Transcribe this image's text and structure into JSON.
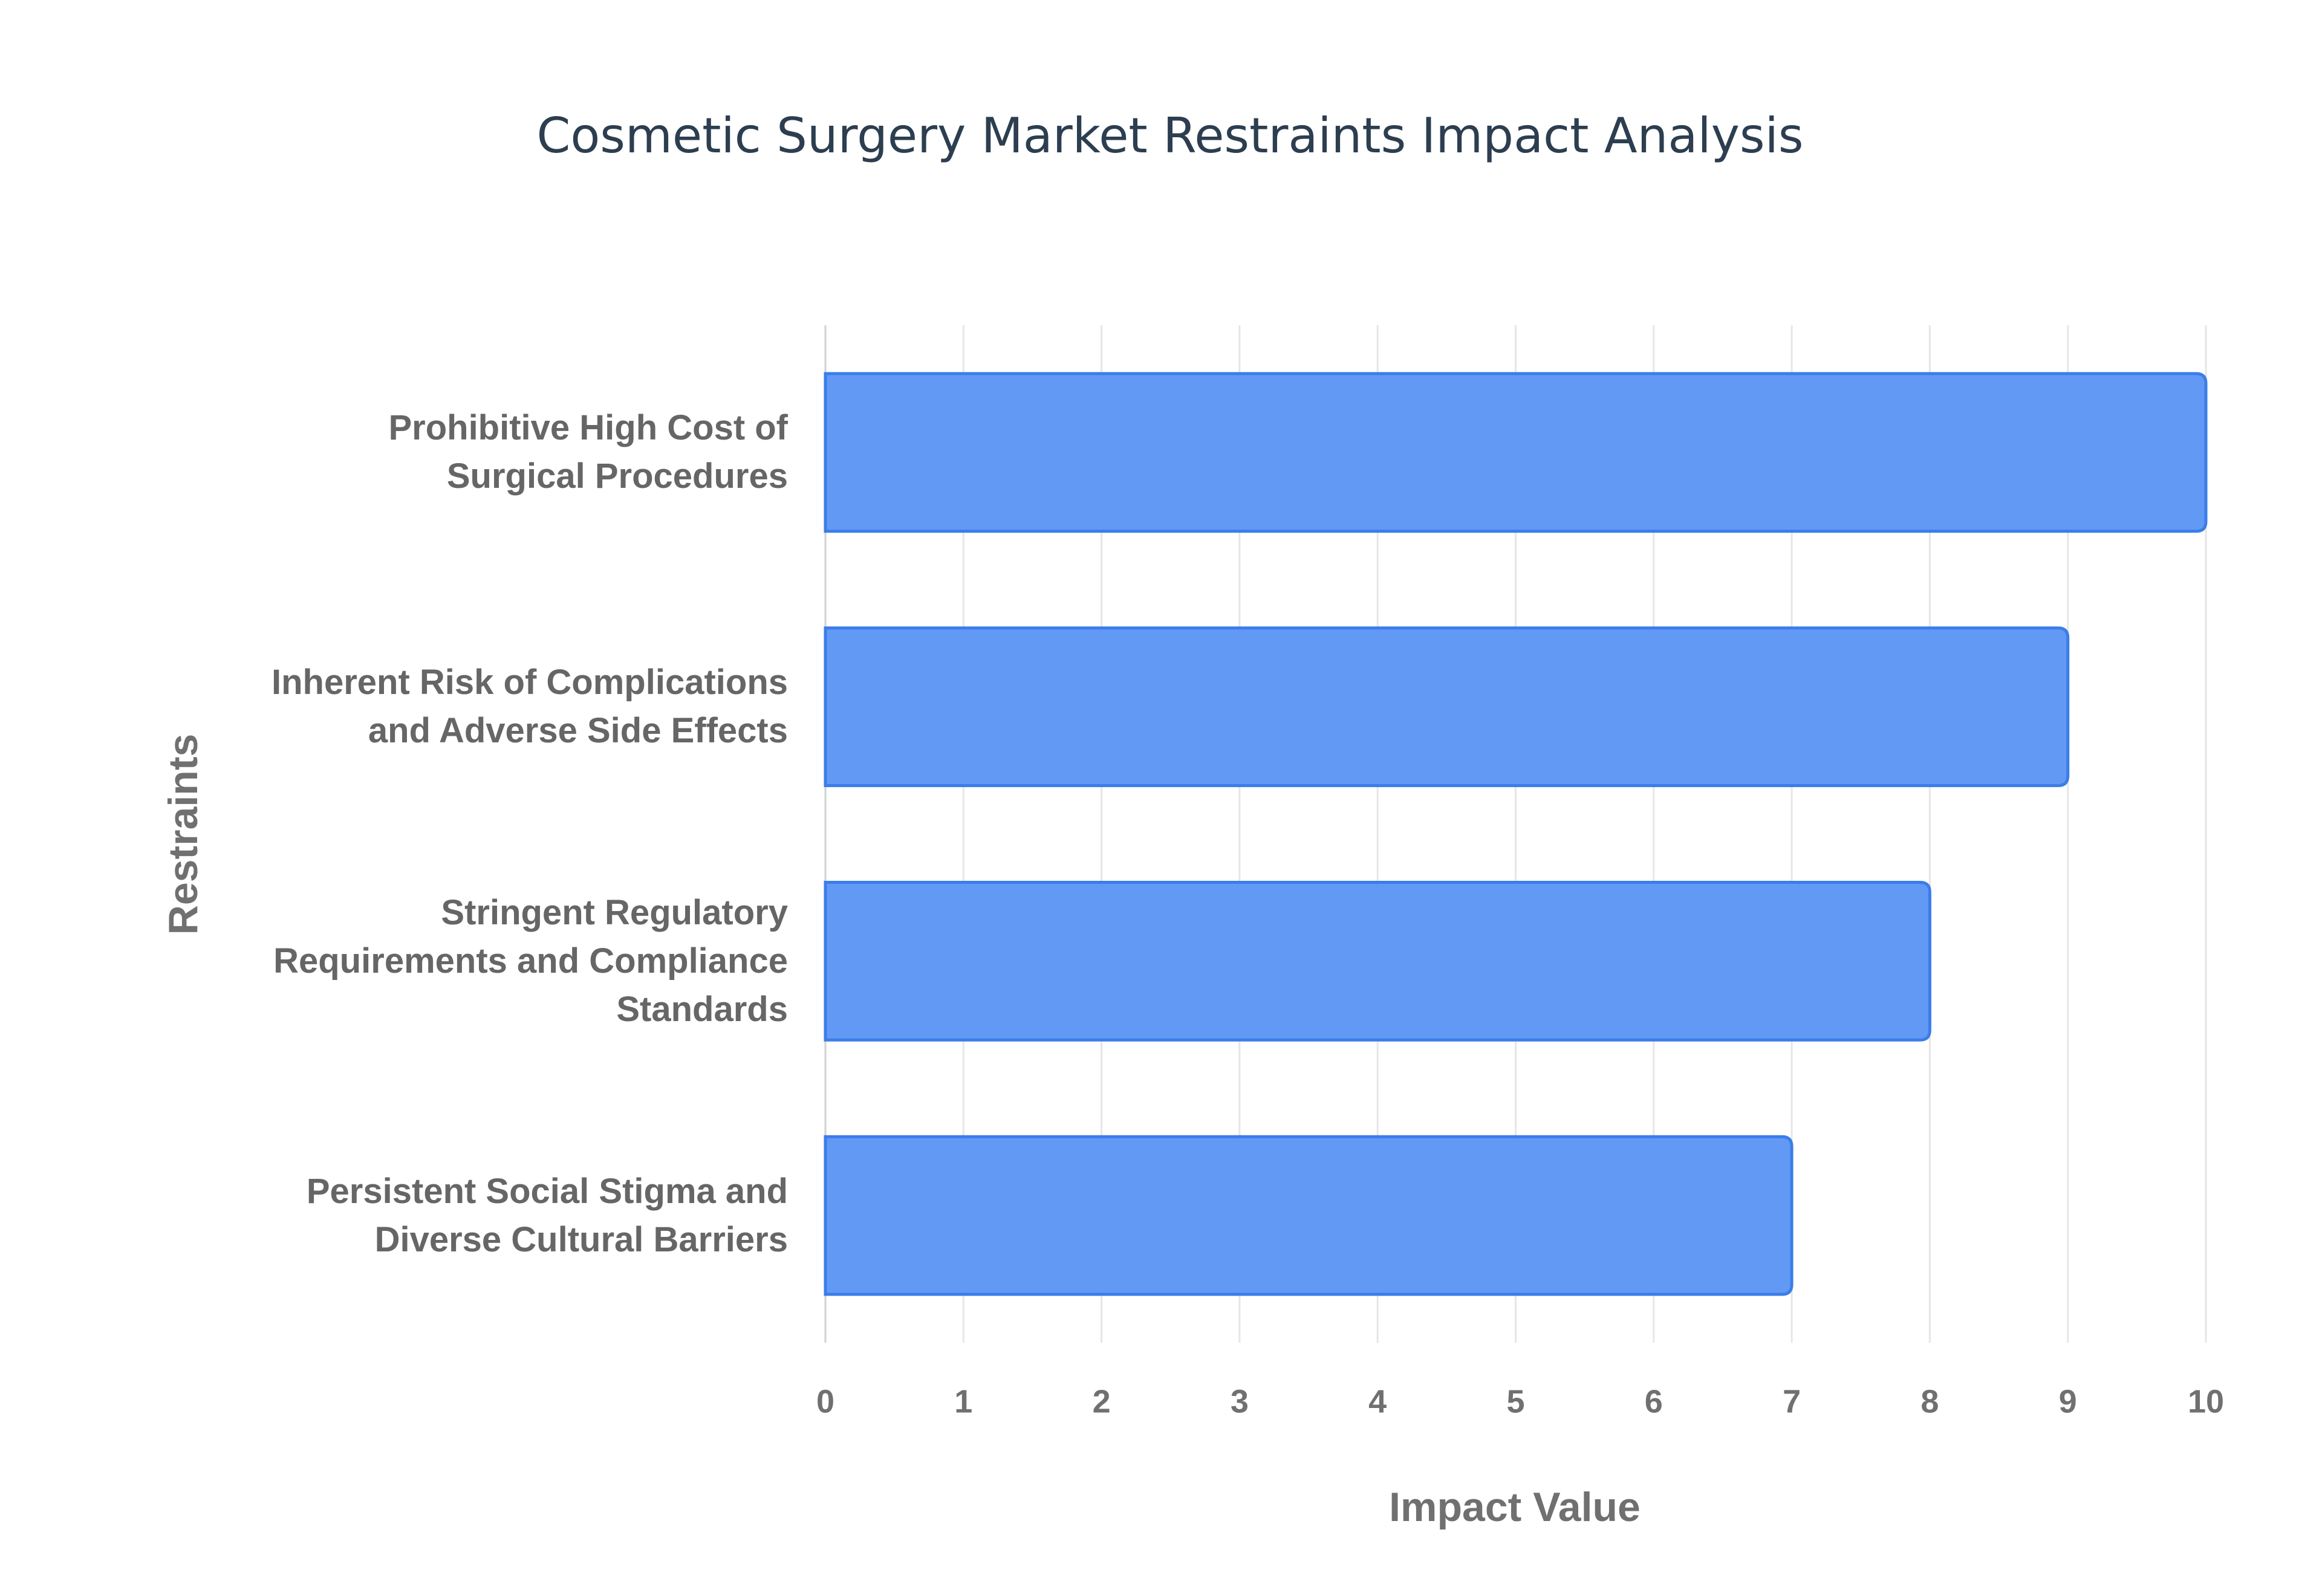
{
  "chart_data": {
    "type": "bar",
    "orientation": "horizontal",
    "title": "Cosmetic Surgery Market Restraints Impact Analysis",
    "x_label": "Impact Value",
    "y_label": "Restraints",
    "categories": [
      "Prohibitive High Cost of Surgical Procedures",
      "Inherent Risk of Complications and Adverse Side Effects",
      "Stringent Regulatory Requirements and Compliance Standards",
      "Persistent Social Stigma and Diverse Cultural Barriers"
    ],
    "values": [
      10,
      9,
      8,
      7
    ],
    "color": "#6199f5",
    "border_color": "#3b7de9",
    "xlim": [
      0,
      10
    ],
    "xticks": [
      0,
      1,
      2,
      3,
      4,
      5,
      6,
      7,
      8,
      9,
      10
    ],
    "grid": true
  }
}
